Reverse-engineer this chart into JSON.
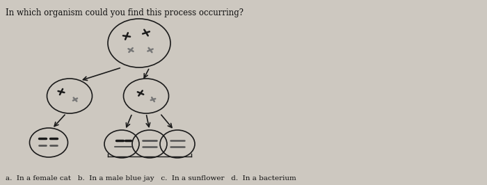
{
  "title": "In which organism could you find this process occurring?",
  "background_color": "#d4cfc8",
  "answer_text": "a.  In a female cat   b.  In a male blue jay   c.  In a sunflower   d.  In a bacterium",
  "fig_bg": "#cdc8c0"
}
